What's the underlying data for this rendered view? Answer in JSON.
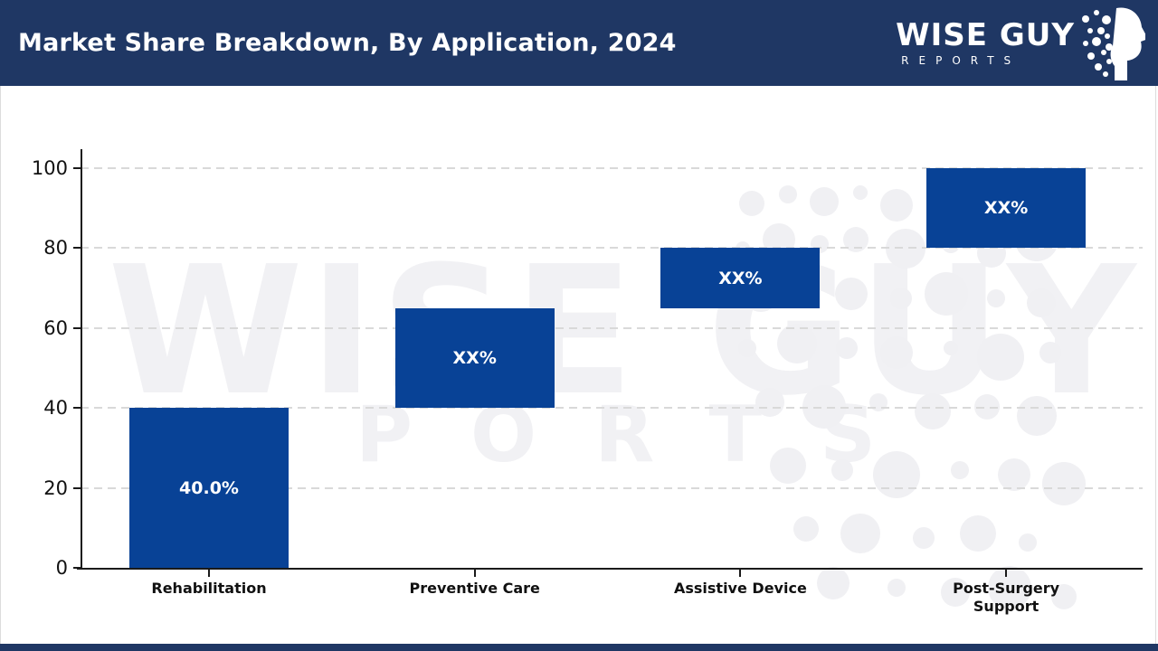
{
  "header": {
    "title": "Market Share Breakdown, By Application, 2024",
    "logo": {
      "wordmark": "WISE GUY",
      "subtext": "REPORTS"
    }
  },
  "watermark": {
    "line1": "WISE GUY",
    "line2": "PORTS"
  },
  "colors": {
    "header_bg": "#1f3764",
    "footer_bg": "#1f3764",
    "bar_fill": "#084296",
    "bar_label_text": "#ffffff",
    "gridline": "#d9d9d9",
    "axis": "#1a1a1a",
    "watermark": "#f1f1f4"
  },
  "chart_data": {
    "type": "bar",
    "subtype": "waterfall",
    "title": "Market Share Breakdown, By Application, 2024",
    "categories": [
      "Rehabilitation",
      "Preventive Care",
      "Assistive Device",
      "Post-Surgery Support"
    ],
    "values": [
      40,
      25,
      15,
      20
    ],
    "segments": [
      {
        "label": "Rehabilitation",
        "start": 0,
        "end": 40,
        "value_label": "40.0%"
      },
      {
        "label": "Preventive Care",
        "start": 40,
        "end": 65,
        "value_label": "XX%"
      },
      {
        "label": "Assistive Device",
        "start": 65,
        "end": 80,
        "value_label": "XX%"
      },
      {
        "label": "Post-Surgery Support",
        "start": 80,
        "end": 100,
        "value_label": "XX%"
      }
    ],
    "xlabel": "",
    "ylabel": "",
    "ylim": [
      0,
      100
    ],
    "yticks": [
      0,
      20,
      40,
      60,
      80,
      100
    ],
    "grid": "horizontal-dashed",
    "legend": "none"
  }
}
